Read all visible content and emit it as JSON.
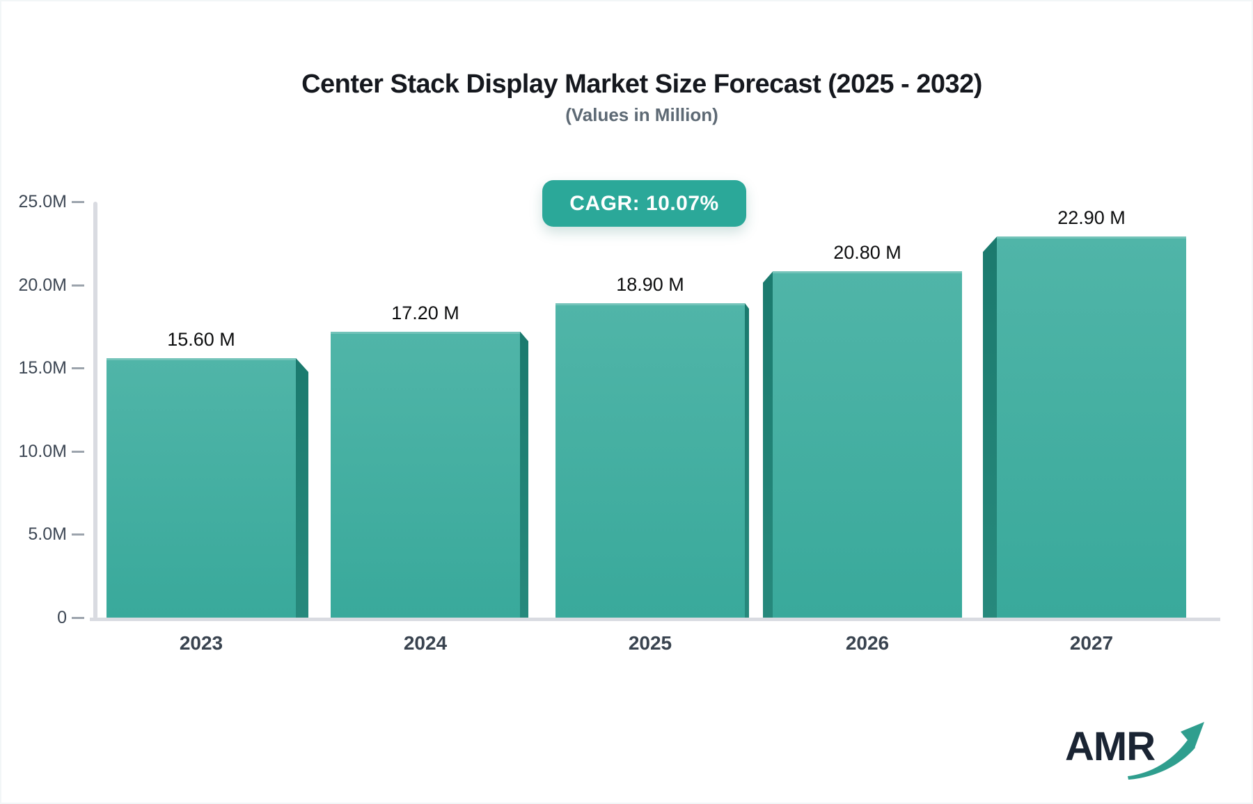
{
  "header": {
    "title": "Center Stack Display Market Size Forecast (2025 - 2032)",
    "subtitle": "(Values in Million)",
    "cagr_badge": "CAGR: 10.07%"
  },
  "colors": {
    "accent_teal": "#2ba899",
    "bar_face_top": "#50b5a8",
    "bar_face_bottom": "#39a99b",
    "bar_side_dark_top": "#1b7a6e",
    "bar_side_dark_bottom": "#27897c",
    "axis_line": "#d9dbe1",
    "axis_label": "#3d4754",
    "value_label": "#0c0d0e",
    "logo_navy": "#1a2433",
    "logo_teal": "#2f9e8e"
  },
  "chart_data": {
    "type": "bar",
    "title": "Center Stack Display Market Size Forecast (2025 - 2032)",
    "subtitle": "(Values in Million)",
    "categories": [
      "2023",
      "2024",
      "2025",
      "2026",
      "2027"
    ],
    "values": [
      15.6,
      17.2,
      18.9,
      20.8,
      22.9
    ],
    "value_labels": [
      "15.60 M",
      "17.20 M",
      "18.90 M",
      "20.80 M",
      "22.90 M"
    ],
    "xlabel": "",
    "ylabel": "",
    "ylim": [
      0,
      25
    ],
    "yticks": [
      0,
      5,
      10,
      15,
      20,
      25
    ],
    "ytick_labels": [
      "0",
      "5.0M",
      "10.0M",
      "15.0M",
      "20.0M",
      "25.0M"
    ],
    "grid": false,
    "legend": "none",
    "annotation": "CAGR: 10.07%"
  },
  "logo": {
    "text": "AMR",
    "arrow_icon": "growth-arrow-icon"
  }
}
